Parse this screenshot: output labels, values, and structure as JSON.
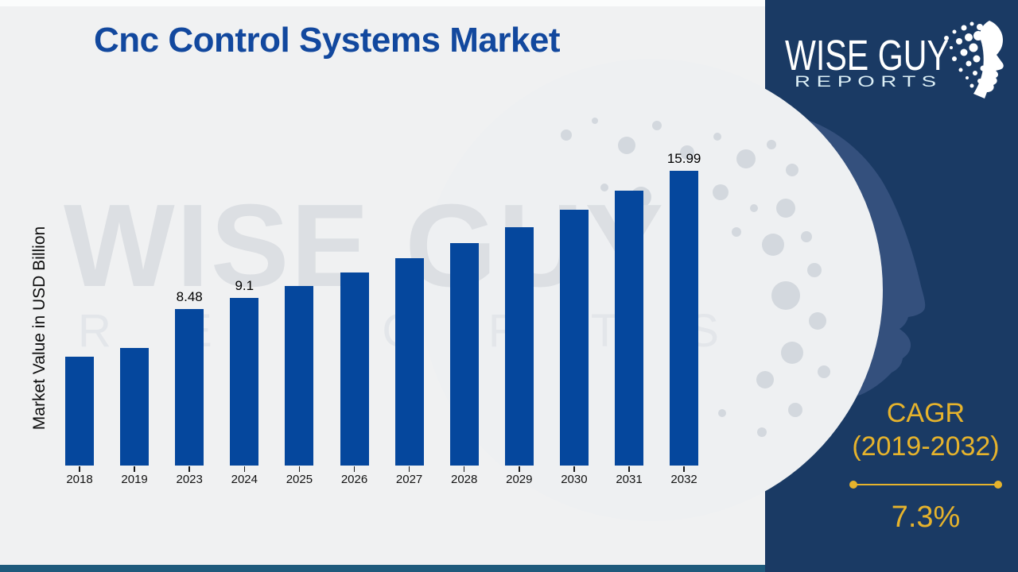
{
  "title": "Cnc Control Systems Market",
  "y_axis_label": "Market Value in USD Billion",
  "watermark": {
    "line1": "WISE GUY",
    "line2": "R E P O R T S"
  },
  "logo": {
    "line1": "WISE GUY",
    "line2": "R E P O R T S"
  },
  "cagr": {
    "heading": "CAGR",
    "range": "(2019-2032)",
    "value": "7.3%"
  },
  "colors": {
    "background": "#F0F1F2",
    "bar": "#05479D",
    "panel": "#1A3A64",
    "face_silhouette": "#34507D",
    "head_circle": "#EEF0F2",
    "brain_dots": "#D3D8DE",
    "gold": "#E6B32C",
    "title_blue": "#12489E",
    "watermark_text": "#DCDFE3",
    "watermark_text2": "#E3E6EA",
    "bottom_strip": "#1E5A7C",
    "logo_subtext": "#DCEFF6"
  },
  "chart_data": {
    "type": "bar",
    "title": "Cnc Control Systems Market",
    "ylabel": "Market Value in USD Billion",
    "xlabel": "",
    "categories": [
      "2018",
      "2019",
      "2023",
      "2024",
      "2025",
      "2026",
      "2027",
      "2028",
      "2029",
      "2030",
      "2031",
      "2032"
    ],
    "values": [
      5.9,
      6.4,
      8.48,
      9.1,
      9.76,
      10.48,
      11.24,
      12.06,
      12.94,
      13.89,
      14.9,
      15.99
    ],
    "data_labels": [
      "",
      "",
      "8.48",
      "9.1",
      "",
      "",
      "",
      "",
      "",
      "",
      "",
      "15.99"
    ],
    "unit": "USD Billion",
    "ylim": [
      0,
      17
    ],
    "grid": false,
    "legend": "none",
    "bar_color": "#05479D"
  }
}
